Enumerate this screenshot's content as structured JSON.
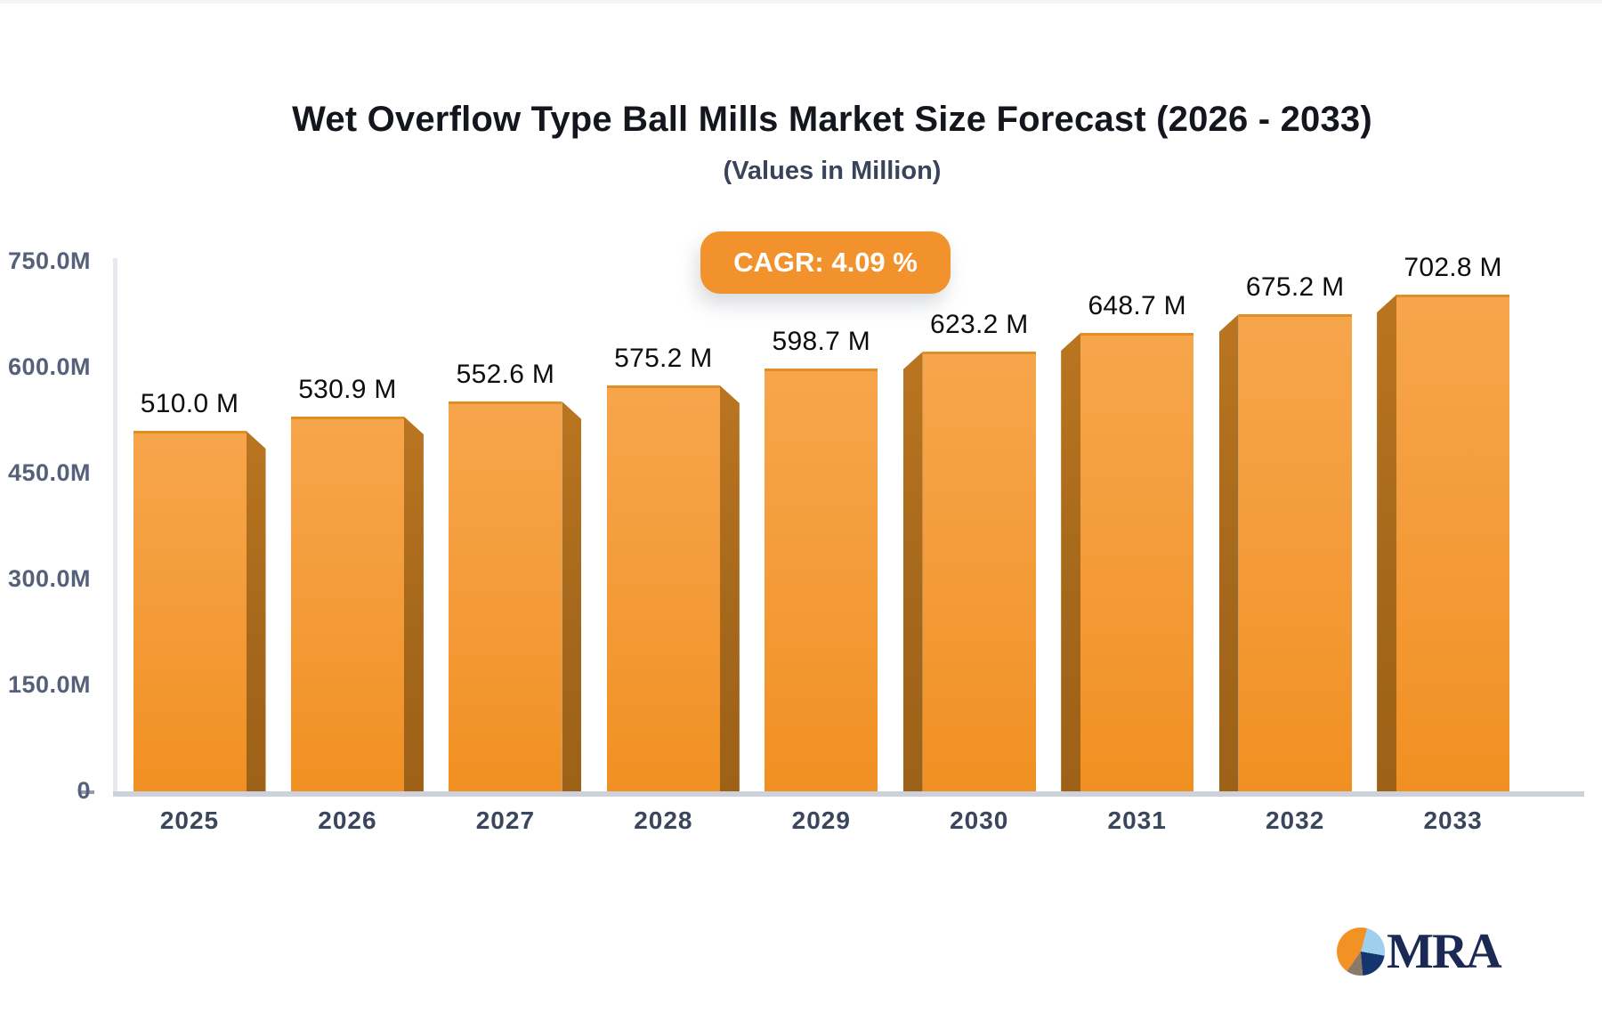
{
  "chart_data": {
    "type": "bar",
    "title": "Wet Overflow Type Ball Mills Market Size Forecast (2026 - 2033)",
    "subtitle": "(Values in Million)",
    "cagr_badge": "CAGR: 4.09 %",
    "categories": [
      "2025",
      "2026",
      "2027",
      "2028",
      "2029",
      "2030",
      "2031",
      "2032",
      "2033"
    ],
    "values": [
      510.0,
      530.9,
      552.6,
      575.2,
      598.7,
      623.2,
      648.7,
      675.2,
      702.8
    ],
    "value_labels": [
      "510.0 M",
      "530.9 M",
      "552.6 M",
      "575.2 M",
      "598.7 M",
      "623.2 M",
      "648.7 M",
      "675.2 M",
      "702.8 M"
    ],
    "xlabel": "",
    "ylabel": "",
    "ylim": [
      0,
      750
    ],
    "grid": false,
    "legend_position": "none",
    "y_axis": {
      "ticks": [
        {
          "label": "750.0M",
          "value": 750
        },
        {
          "label": "600.0M",
          "value": 600
        },
        {
          "label": "450.0M",
          "value": 450
        },
        {
          "label": "300.0M",
          "value": 300
        },
        {
          "label": "150.0M",
          "value": 150
        },
        {
          "label": "0",
          "value": 0
        }
      ]
    },
    "colors": {
      "bar_face_top": "#F7A54B",
      "bar_face_bottom": "#F19022",
      "bar_side": "#A4671B",
      "badge_background": "#F2922D",
      "badge_text": "#FFFFFF",
      "axis_line": "#CCD1DB",
      "tick_text": "#55617A",
      "category_text": "#39465C",
      "value_text": "#0C0D10"
    }
  },
  "branding": {
    "logo_text": "MRA",
    "logo_colors": {
      "orange": "#F29124",
      "light_blue": "#9ECFED",
      "navy": "#15356E",
      "taupe": "#8A7A6A",
      "text_navy": "#1B2A55"
    }
  }
}
